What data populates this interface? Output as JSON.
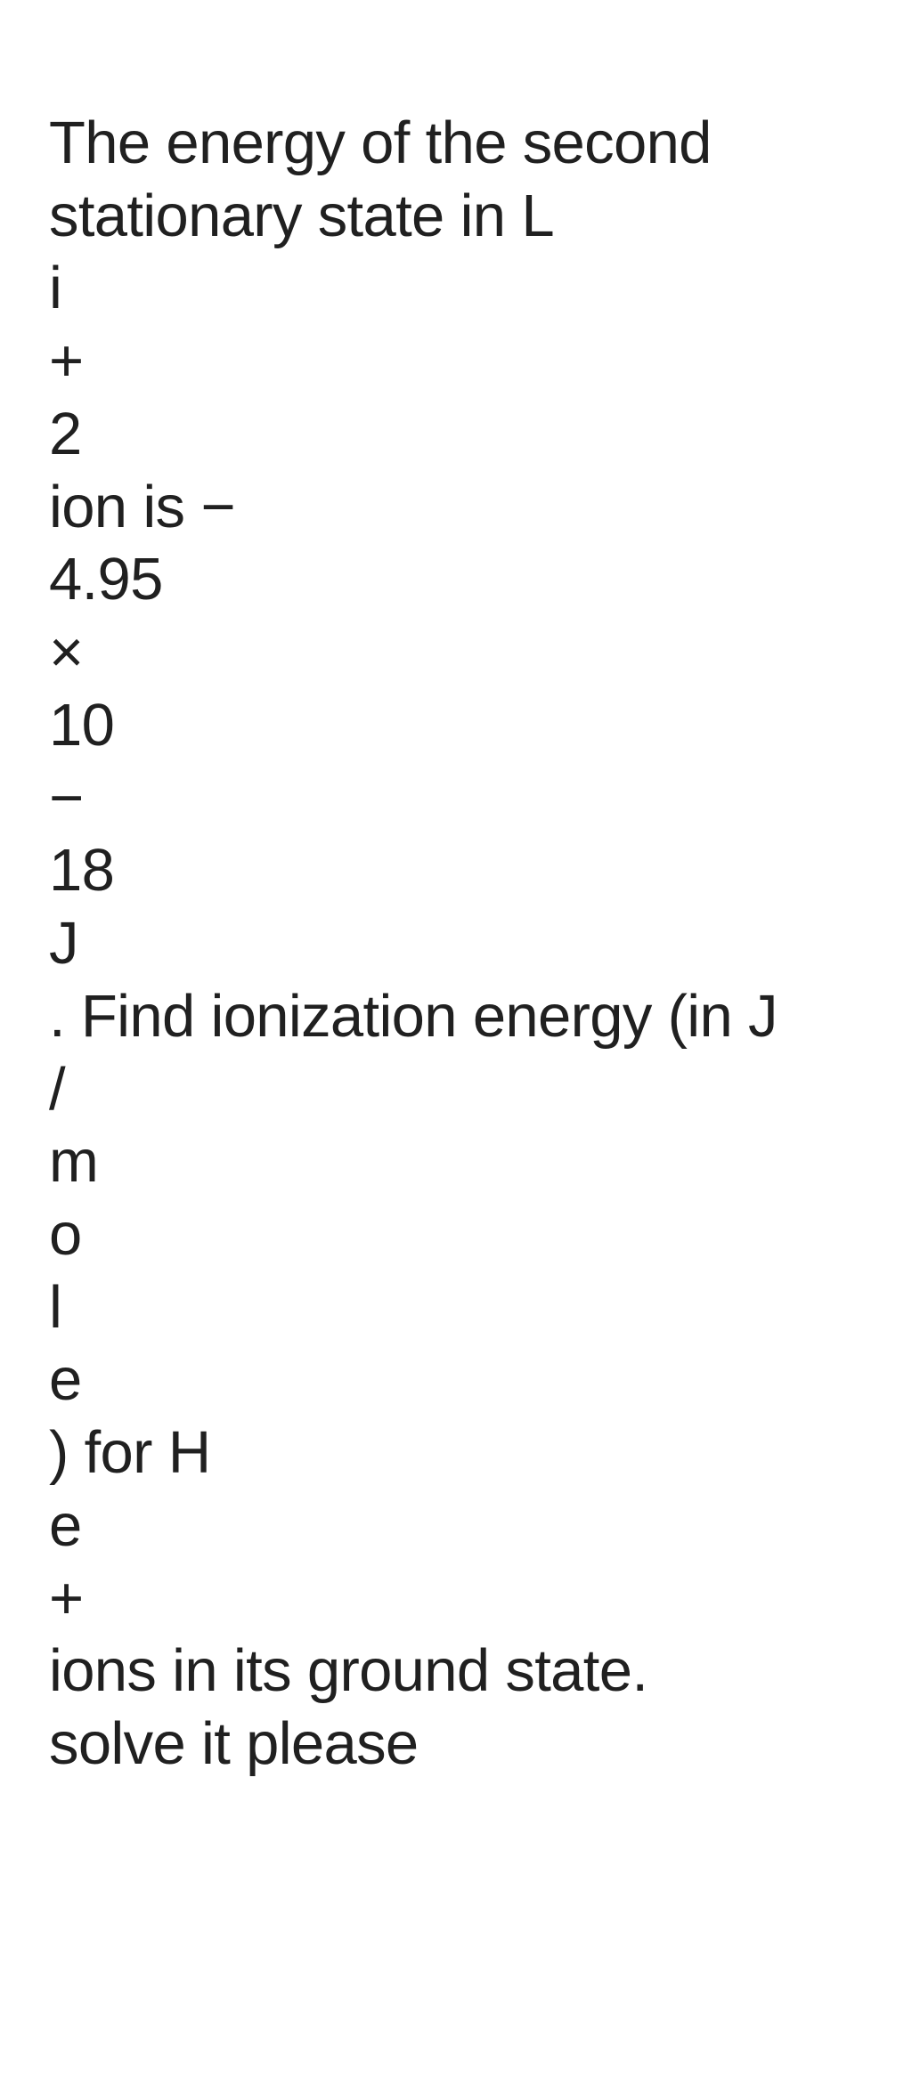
{
  "question": {
    "lines": [
      "The energy of the second stationary state in L",
      "i",
      "+",
      "2",
      " ion is −",
      "4.95",
      "×",
      "10",
      "−",
      "18",
      "J",
      ". Find ionization energy (in J",
      "/",
      "m",
      "o",
      "l",
      "e",
      ") for H",
      "e",
      "+",
      " ions in its ground state.",
      "solve it please"
    ],
    "text_color": "#202020",
    "background_color": "#ffffff",
    "font_size": 67,
    "font_weight": 400,
    "line_height": 1.22
  }
}
